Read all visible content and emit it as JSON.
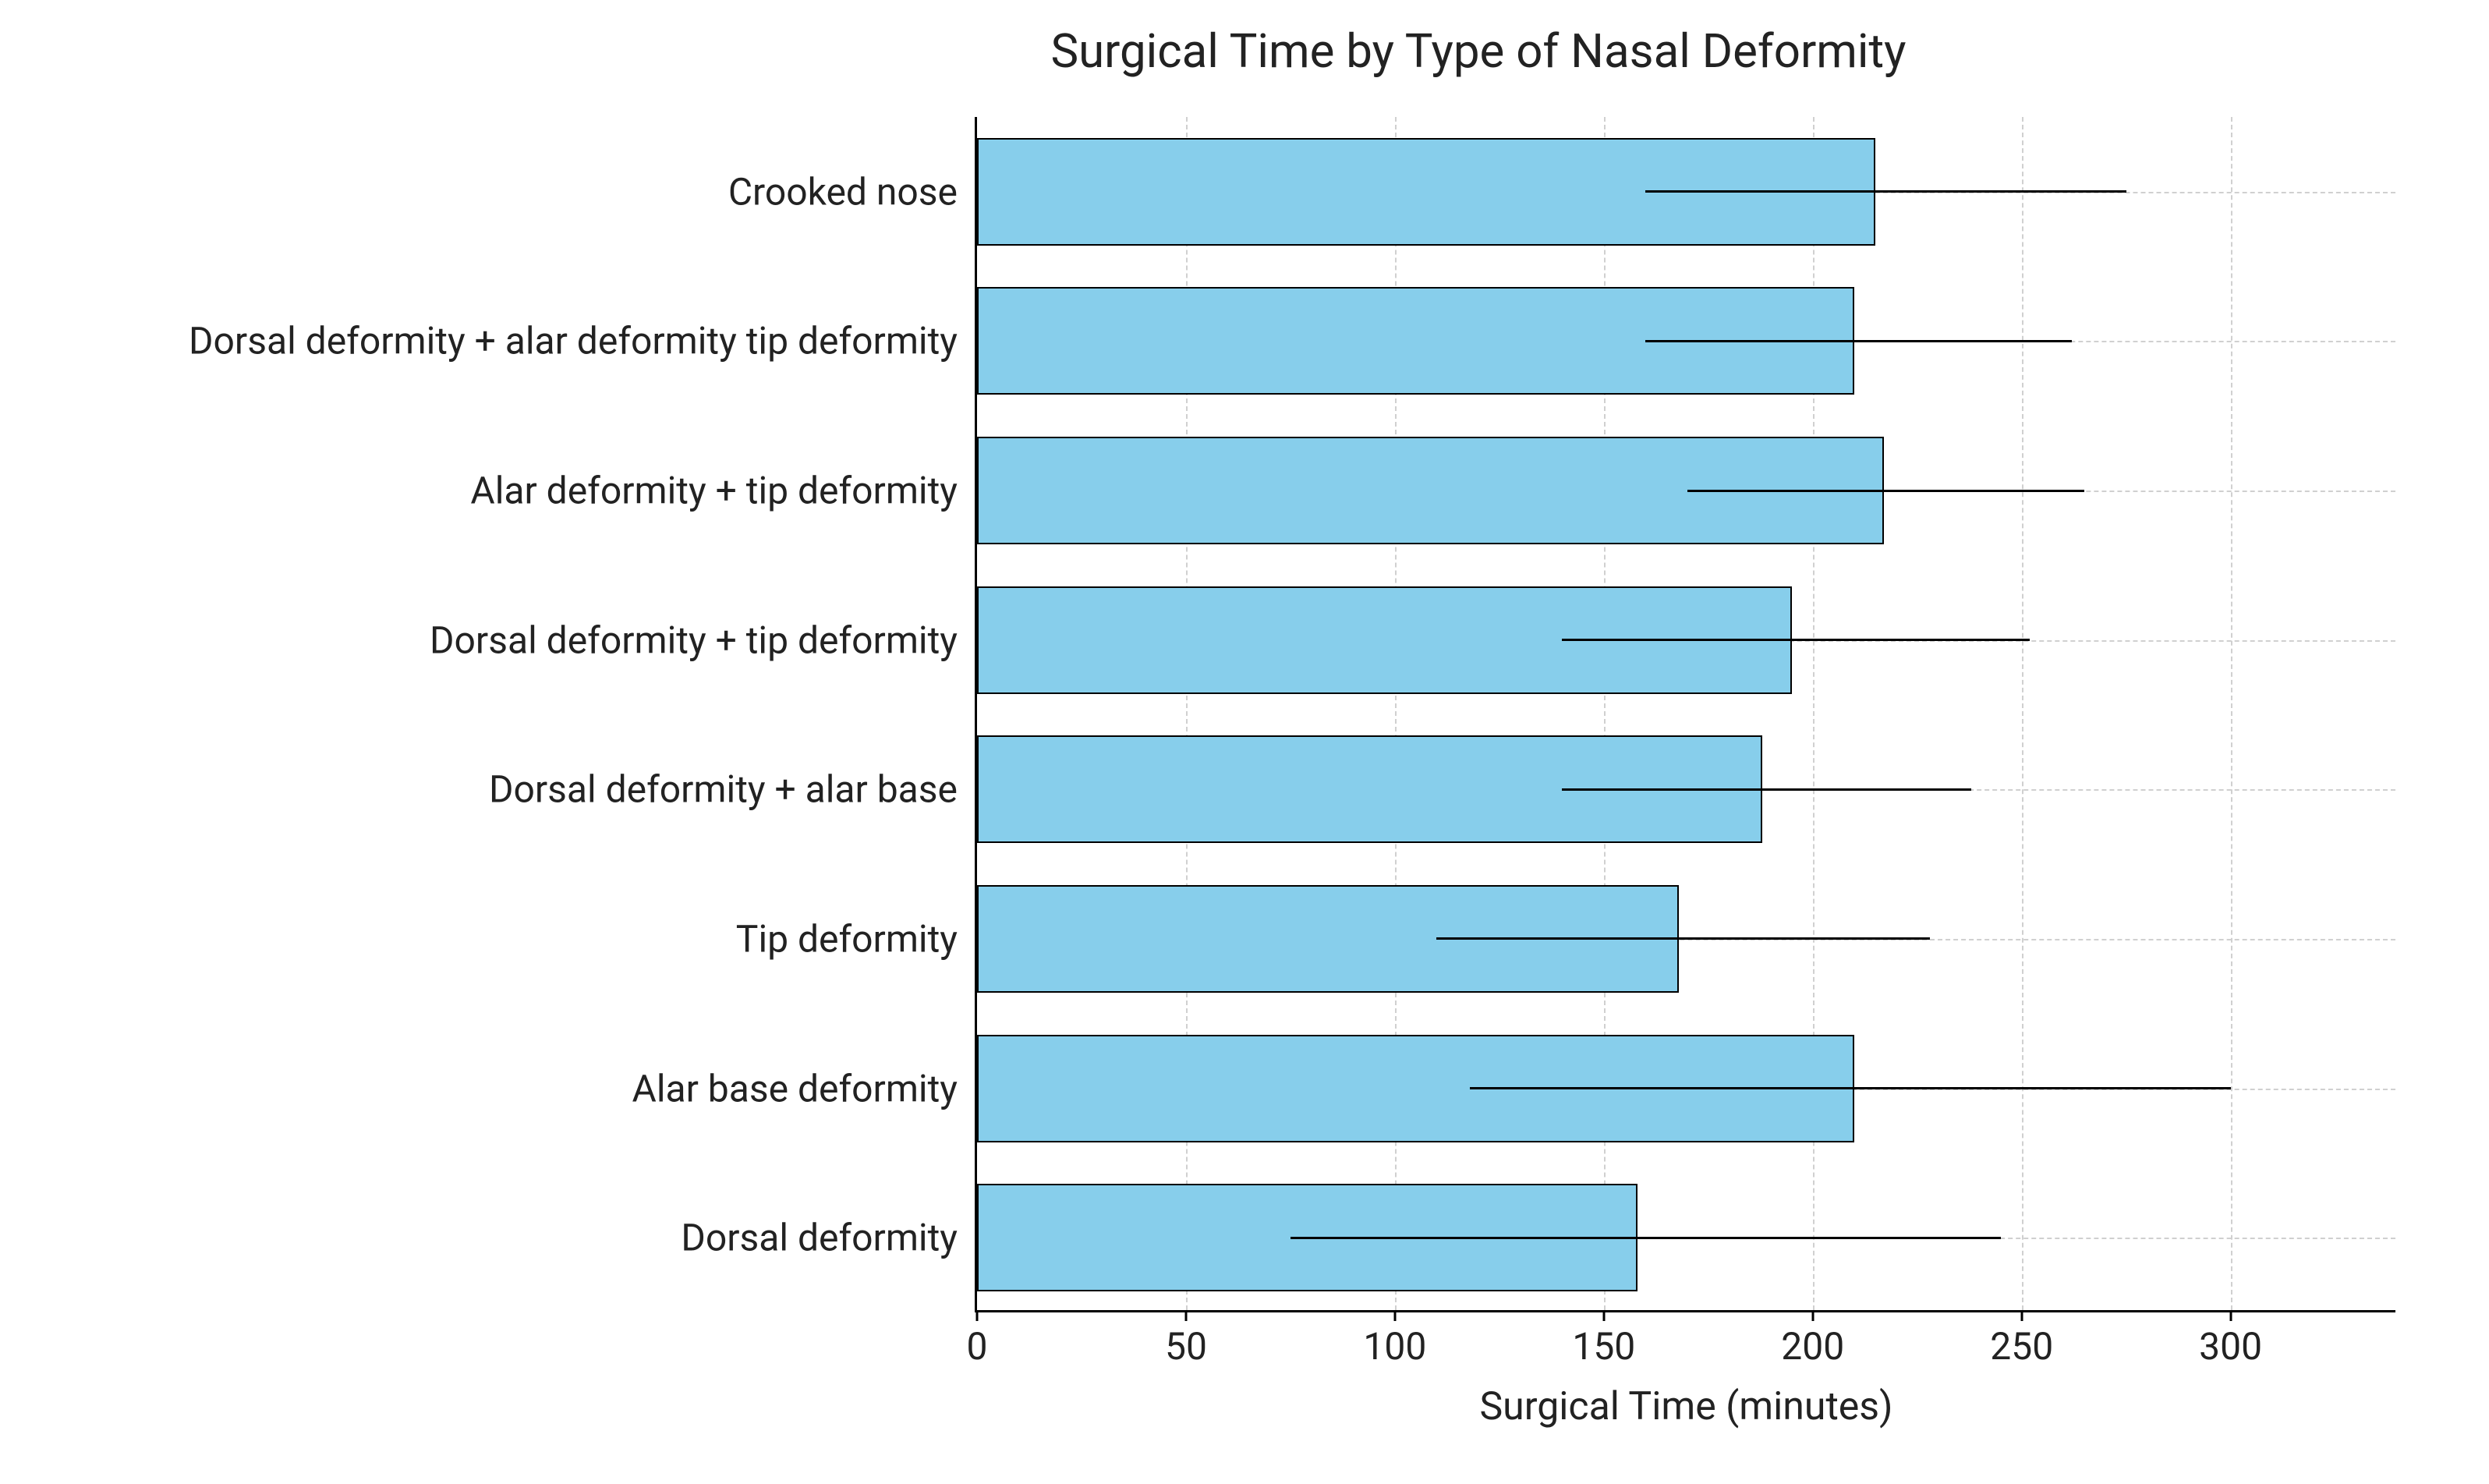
{
  "chart": {
    "type": "bar-horizontal",
    "title": "Surgical Time by Type of Nasal Deformity",
    "title_fontsize": 60,
    "xlabel": "Surgical Time (minutes)",
    "xlabel_fontsize": 50,
    "categories": [
      "Crooked nose",
      "Dorsal deformity + alar deformity tip deformity",
      "Alar deformity + tip deformity",
      "Dorsal deformity + tip deformity",
      "Dorsal deformity + alar base",
      "Tip deformity",
      "Alar base deformity",
      "Dorsal deformity"
    ],
    "values": [
      215,
      210,
      217,
      195,
      188,
      168,
      210,
      158
    ],
    "err_low": [
      160,
      160,
      170,
      140,
      140,
      110,
      118,
      75
    ],
    "err_high": [
      275,
      262,
      265,
      252,
      238,
      228,
      300,
      245
    ],
    "category_fontsize": 48,
    "tick_fontsize": 48,
    "xlim": [
      0,
      340
    ],
    "xtick_step": 50,
    "xticks": [
      0,
      50,
      100,
      150,
      200,
      250,
      300
    ],
    "bar_color": "#87ceeb",
    "bar_edge_color": "#000000",
    "error_color": "#000000",
    "error_linewidth": 3,
    "background_color": "#ffffff",
    "grid_color": "#d0d0d0",
    "grid_dash": true,
    "bar_fill_ratio": 0.72,
    "aspect_w": 3192,
    "aspect_h": 1903
  }
}
